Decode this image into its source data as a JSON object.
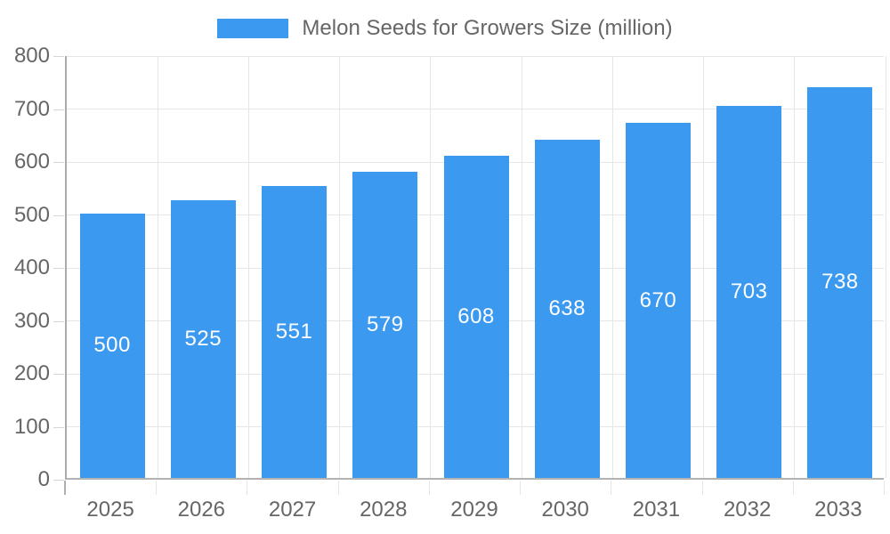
{
  "chart_data": {
    "type": "bar",
    "title": "Melon Seeds for Growers Size (million)",
    "categories": [
      "2025",
      "2026",
      "2027",
      "2028",
      "2029",
      "2030",
      "2031",
      "2032",
      "2033"
    ],
    "values": [
      500,
      525,
      551,
      579,
      608,
      638,
      670,
      703,
      738
    ],
    "xlabel": "",
    "ylabel": "",
    "ylim": [
      0,
      800
    ],
    "yticks": [
      0,
      100,
      200,
      300,
      400,
      500,
      600,
      700,
      800
    ],
    "grid": true,
    "legend_position": "top-center",
    "value_labels": "inside-center-white",
    "colors": {
      "bar": "#3B99F0",
      "bar_value_text": "#FFFFFF",
      "axis_text": "#666666",
      "gridline": "#E6E6E6",
      "axis_line": "#B0B0B0",
      "tick_mark": "#D6D6D6"
    }
  }
}
